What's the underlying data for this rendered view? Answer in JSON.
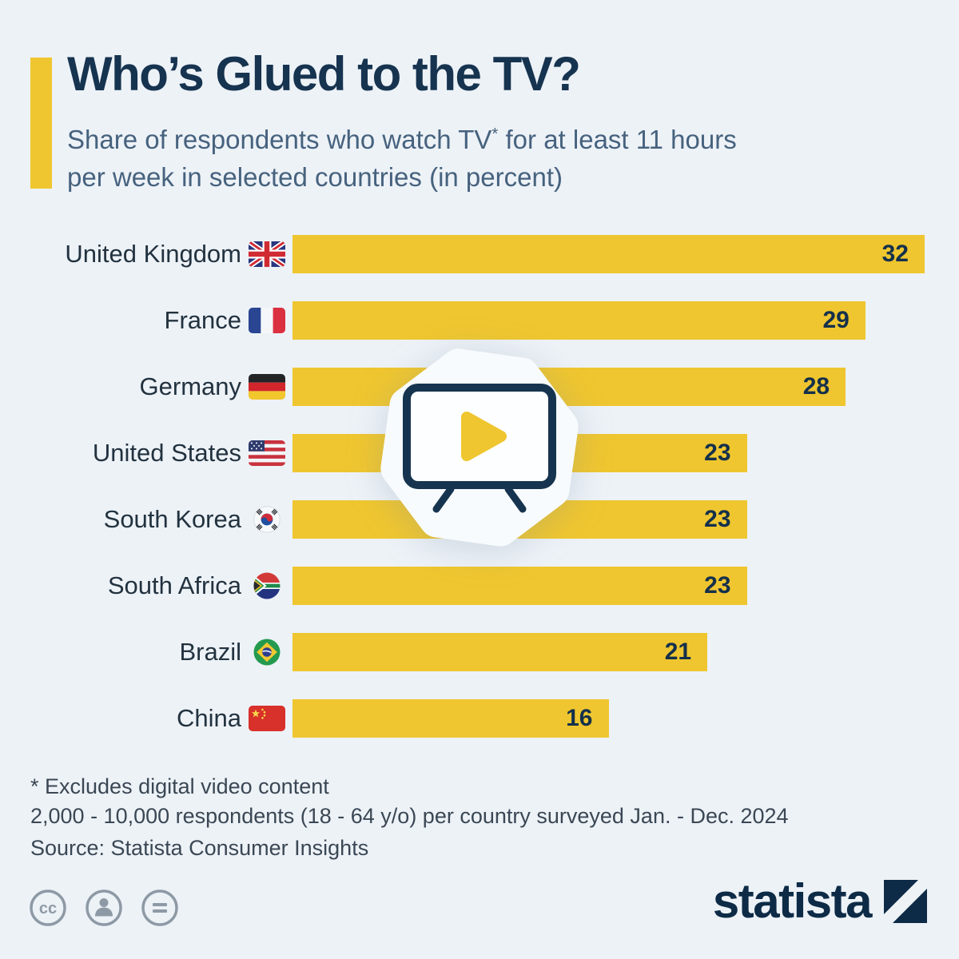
{
  "colors": {
    "background": "#edf2f7",
    "accent_yellow": "#efc62f",
    "navy": "#16334f",
    "subtitle": "#46627e",
    "footnote": "#3a4754",
    "icon_gray": "#8d9aa5"
  },
  "header": {
    "title": "Who’s Glued to the TV?",
    "subtitle_line1_pre": "Share of respondents who watch TV",
    "subtitle_sup": "*",
    "subtitle_line1_post": " for at least 11 hours",
    "subtitle_line2": "per week in selected countries (in percent)"
  },
  "chart_data": {
    "type": "bar",
    "orientation": "horizontal",
    "title": "Who’s Glued to the TV?",
    "subtitle": "Share of respondents who watch TV* for at least 11 hours per week in selected countries (in percent)",
    "unit": "percent",
    "categories": [
      "United Kingdom",
      "France",
      "Germany",
      "United States",
      "South Korea",
      "South Africa",
      "Brazil",
      "China"
    ],
    "values": [
      32,
      29,
      28,
      23,
      23,
      23,
      21,
      16
    ],
    "flags": [
      "flag-united-kingdom",
      "flag-france",
      "flag-germany",
      "flag-united-states",
      "flag-south-korea",
      "flag-south-africa",
      "flag-brazil",
      "flag-china"
    ],
    "xlim": [
      0,
      32
    ],
    "bar_color": "#efc62f",
    "value_label_color": "#14304b",
    "value_labels": "inside-end",
    "grid": false,
    "legend": false
  },
  "watermark": {
    "icon": "tv-play-icon"
  },
  "footnotes": {
    "line1": "* Excludes digital video content",
    "line2": "2,000 - 10,000 respondents (18 - 64 y/o) per country surveyed Jan. - Dec. 2024"
  },
  "source": "Source: Statista Consumer Insights",
  "footer": {
    "brand": "statista",
    "license_icons": [
      "cc-icon",
      "attribution-person-icon",
      "equals-icon"
    ]
  }
}
